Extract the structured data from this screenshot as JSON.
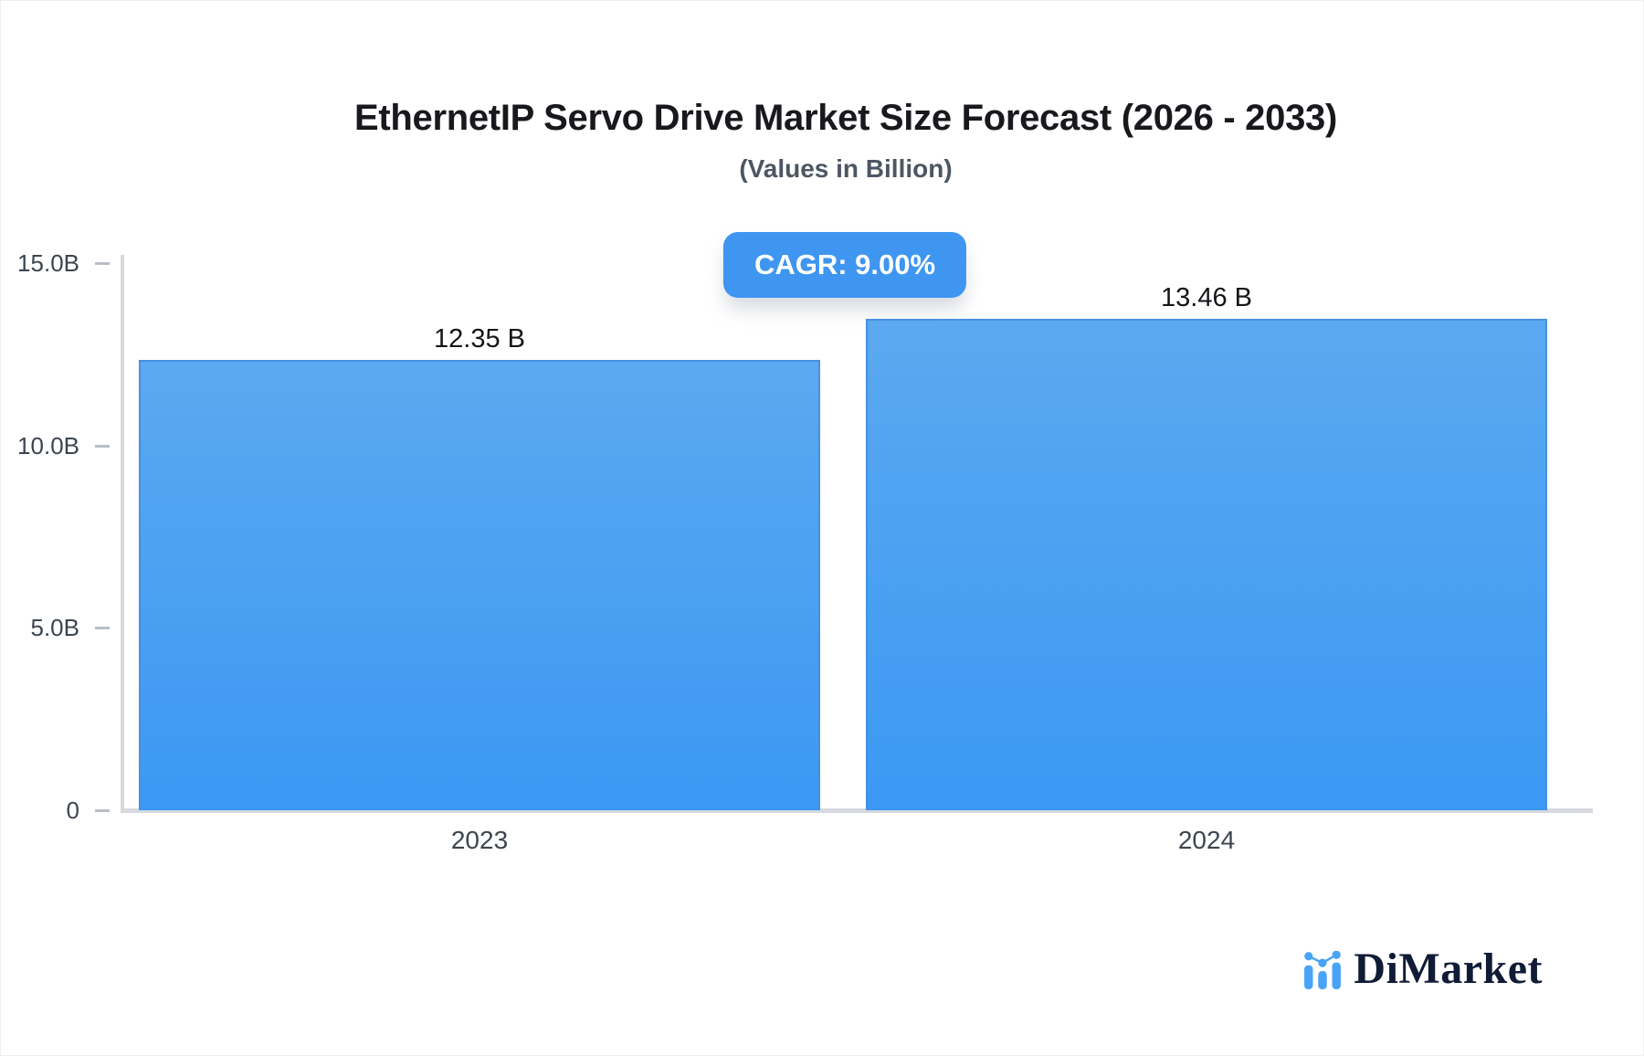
{
  "header": {
    "title": "EthernetIP Servo Drive Market Size Forecast (2026 - 2033)",
    "subtitle": "(Values in Billion)",
    "cagr_badge": "CAGR: 9.00%"
  },
  "chart_data": {
    "type": "bar",
    "title": "EthernetIP Servo Drive Market Size Forecast (2026 - 2033)",
    "subtitle": "(Values in Billion)",
    "categories": [
      "2023",
      "2024"
    ],
    "values": [
      12.35,
      13.46
    ],
    "value_labels": [
      "12.35 B",
      "13.46 B"
    ],
    "cagr_percent": 9.0,
    "xlabel": "",
    "ylabel": "",
    "ylim": [
      0,
      15
    ],
    "yticks": [
      {
        "value": 15,
        "label": "15.0B"
      },
      {
        "value": 10,
        "label": "10.0B"
      },
      {
        "value": 5,
        "label": "5.0B"
      },
      {
        "value": 0,
        "label": "0"
      }
    ],
    "grid": false,
    "legend": "none"
  },
  "colors": {
    "accent_blue": "#3e96f0",
    "bar_gradient_top": "#5ba9f0",
    "bar_gradient_bottom": "#3b98f3",
    "bar_border": "#4690e0",
    "axis_line": "#d6d9de",
    "tick_dash": "#b9bfc7",
    "title_text": "#17191d",
    "subtitle_text": "#4d5663",
    "tick_text": "#3c4550",
    "value_text": "#14161a",
    "brand_navy": "#101b36",
    "brand_blue": "#4ba3f7"
  },
  "footer": {
    "brand": "DiMarket"
  }
}
